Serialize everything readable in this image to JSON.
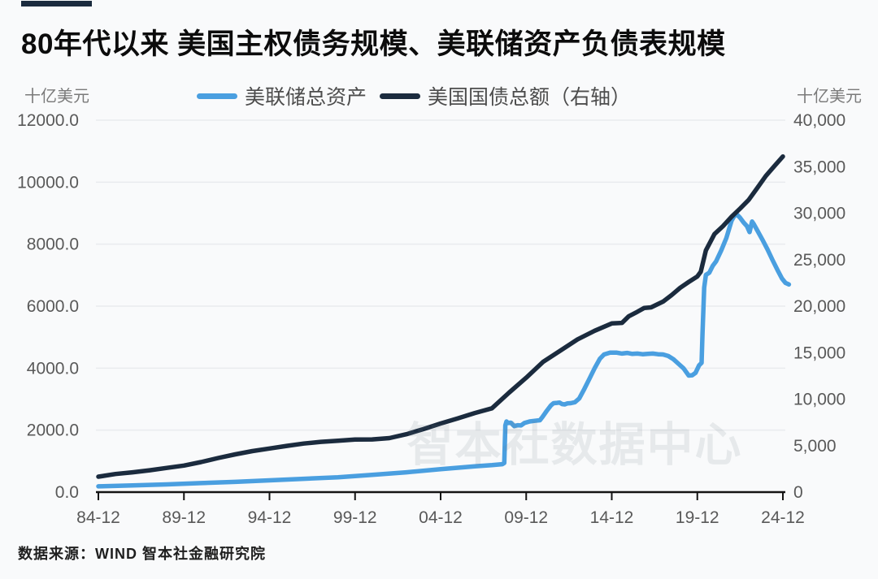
{
  "header": {
    "title": "80年代以来 美国主权债务规模、美联储资产负债表规模"
  },
  "legend": {
    "items": [
      {
        "label": "美联储总资产",
        "color": "#4a9fe0"
      },
      {
        "label": "美国国债总额（右轴）",
        "color": "#1b2b3e"
      }
    ]
  },
  "axes": {
    "left_unit": "十亿美元",
    "right_unit": "十亿美元"
  },
  "watermark": "智本社数据中心",
  "footer": {
    "source": "数据来源：WIND 智本社金融研究院"
  },
  "chart_data": {
    "type": "line",
    "title": "80年代以来 美国主权债务规模、美联储资产负债表规模",
    "grid": "horizontal",
    "legend_position": "top-center",
    "x_axis": {
      "note": "t = years since 1984-12 (monthly series)",
      "tick_t": [
        0,
        5,
        10,
        15,
        20,
        25,
        30,
        35,
        40
      ],
      "tick_labels": [
        "84-12",
        "89-12",
        "94-12",
        "99-12",
        "04-12",
        "09-12",
        "14-12",
        "19-12",
        "24-12"
      ],
      "range_t": [
        0,
        40.4
      ]
    },
    "left_axis": {
      "unit": "十亿美元",
      "range": [
        0,
        12000
      ],
      "tick_values": [
        0,
        2000,
        4000,
        6000,
        8000,
        10000,
        12000
      ],
      "tick_labels": [
        "0.0",
        "2000.0",
        "4000.0",
        "6000.0",
        "8000.0",
        "10000.0",
        "12000.0"
      ]
    },
    "right_axis": {
      "unit": "十亿美元",
      "range": [
        0,
        40000
      ],
      "tick_values": [
        0,
        5000,
        10000,
        15000,
        20000,
        25000,
        30000,
        35000,
        40000
      ],
      "tick_labels": [
        "0",
        "5,000",
        "10,000",
        "15,000",
        "20,000",
        "25,000",
        "30,000",
        "35,000",
        "40,000"
      ]
    },
    "series": [
      {
        "name": "美联储总资产",
        "axis": "left",
        "color": "#4a9fe0",
        "points": [
          [
            0,
            185
          ],
          [
            2,
            215
          ],
          [
            4,
            250
          ],
          [
            6,
            290
          ],
          [
            8,
            330
          ],
          [
            10,
            380
          ],
          [
            12,
            430
          ],
          [
            14,
            480
          ],
          [
            16,
            555
          ],
          [
            18,
            640
          ],
          [
            20,
            740
          ],
          [
            22,
            830
          ],
          [
            23,
            870
          ],
          [
            23.6,
            900
          ],
          [
            23.72,
            940
          ],
          [
            23.78,
            2150
          ],
          [
            23.85,
            2280
          ],
          [
            23.95,
            2230
          ],
          [
            24.1,
            2240
          ],
          [
            24.3,
            2130
          ],
          [
            24.5,
            2160
          ],
          [
            24.7,
            2150
          ],
          [
            24.9,
            2230
          ],
          [
            25.2,
            2280
          ],
          [
            25.5,
            2300
          ],
          [
            25.8,
            2320
          ],
          [
            25.95,
            2420
          ],
          [
            26.2,
            2620
          ],
          [
            26.45,
            2800
          ],
          [
            26.6,
            2870
          ],
          [
            26.8,
            2880
          ],
          [
            26.95,
            2890
          ],
          [
            27.1,
            2840
          ],
          [
            27.25,
            2830
          ],
          [
            27.4,
            2860
          ],
          [
            27.6,
            2870
          ],
          [
            27.85,
            2900
          ],
          [
            28.1,
            3020
          ],
          [
            28.4,
            3330
          ],
          [
            28.7,
            3660
          ],
          [
            29,
            4000
          ],
          [
            29.3,
            4300
          ],
          [
            29.55,
            4440
          ],
          [
            29.9,
            4500
          ],
          [
            30.3,
            4500
          ],
          [
            30.6,
            4470
          ],
          [
            30.9,
            4490
          ],
          [
            31.2,
            4460
          ],
          [
            31.5,
            4470
          ],
          [
            31.8,
            4450
          ],
          [
            32.1,
            4460
          ],
          [
            32.4,
            4470
          ],
          [
            32.7,
            4450
          ],
          [
            33,
            4440
          ],
          [
            33.3,
            4390
          ],
          [
            33.6,
            4290
          ],
          [
            33.9,
            4140
          ],
          [
            34.2,
            3990
          ],
          [
            34.5,
            3760
          ],
          [
            34.7,
            3770
          ],
          [
            34.9,
            3850
          ],
          [
            35.1,
            4090
          ],
          [
            35.25,
            4170
          ],
          [
            35.3,
            5100
          ],
          [
            35.4,
            6600
          ],
          [
            35.5,
            7010
          ],
          [
            35.7,
            7080
          ],
          [
            35.9,
            7300
          ],
          [
            36.1,
            7450
          ],
          [
            36.4,
            7800
          ],
          [
            36.7,
            8200
          ],
          [
            37,
            8760
          ],
          [
            37.15,
            8900
          ],
          [
            37.3,
            8965
          ],
          [
            37.5,
            8850
          ],
          [
            37.7,
            8700
          ],
          [
            37.9,
            8580
          ],
          [
            38.05,
            8390
          ],
          [
            38.2,
            8730
          ],
          [
            38.3,
            8650
          ],
          [
            38.5,
            8450
          ],
          [
            38.8,
            8150
          ],
          [
            39.1,
            7830
          ],
          [
            39.4,
            7480
          ],
          [
            39.7,
            7150
          ],
          [
            39.95,
            6890
          ],
          [
            40.15,
            6750
          ],
          [
            40.35,
            6700
          ]
        ]
      },
      {
        "name": "美国国债总额（右轴）",
        "axis": "right",
        "color": "#1b2b3e",
        "points": [
          [
            0,
            1660
          ],
          [
            1,
            1950
          ],
          [
            2,
            2130
          ],
          [
            3,
            2350
          ],
          [
            4,
            2600
          ],
          [
            5,
            2860
          ],
          [
            6,
            3230
          ],
          [
            7,
            3670
          ],
          [
            8,
            4060
          ],
          [
            9,
            4410
          ],
          [
            10,
            4690
          ],
          [
            11,
            4970
          ],
          [
            12,
            5220
          ],
          [
            13,
            5410
          ],
          [
            14,
            5530
          ],
          [
            15,
            5660
          ],
          [
            16,
            5670
          ],
          [
            17,
            5810
          ],
          [
            18,
            6230
          ],
          [
            19,
            6780
          ],
          [
            20,
            7380
          ],
          [
            21,
            7930
          ],
          [
            22,
            8510
          ],
          [
            23,
            9010
          ],
          [
            24,
            10700
          ],
          [
            25,
            12310
          ],
          [
            26,
            14030
          ],
          [
            27,
            15220
          ],
          [
            28,
            16430
          ],
          [
            29,
            17350
          ],
          [
            30,
            18140
          ],
          [
            30.6,
            18200
          ],
          [
            31,
            18920
          ],
          [
            31.5,
            19400
          ],
          [
            31.9,
            19810
          ],
          [
            32.3,
            19870
          ],
          [
            33,
            20490
          ],
          [
            33.5,
            21200
          ],
          [
            34,
            21970
          ],
          [
            34.5,
            22600
          ],
          [
            35,
            23200
          ],
          [
            35.2,
            23700
          ],
          [
            35.5,
            26000
          ],
          [
            36,
            27750
          ],
          [
            36.5,
            28600
          ],
          [
            37,
            29620
          ],
          [
            37.5,
            30500
          ],
          [
            38,
            31420
          ],
          [
            38.5,
            32700
          ],
          [
            39,
            34000
          ],
          [
            39.5,
            35060
          ],
          [
            40,
            36100
          ]
        ]
      }
    ]
  }
}
